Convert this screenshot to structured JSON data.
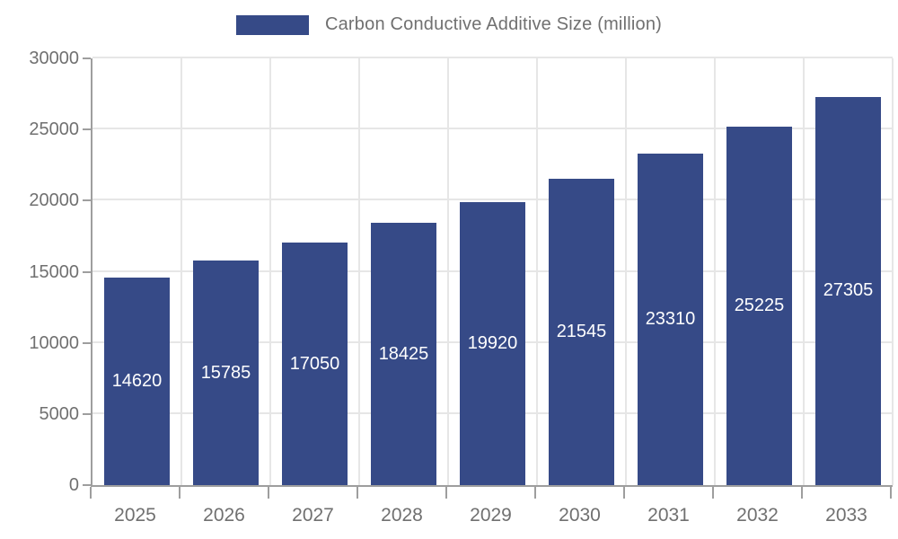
{
  "legend": {
    "label": "Carbon Conductive Additive Size (million)"
  },
  "colors": {
    "bar": "#364a87",
    "grid": "#e6e6e6",
    "axis": "#9e9e9e",
    "tick_text": "#707070",
    "value_text": "#ffffff",
    "background": "#ffffff"
  },
  "chart_data": {
    "type": "bar",
    "title": "Carbon Conductive Additive Size (million)",
    "series": [
      {
        "name": "Carbon Conductive Additive Size (million)",
        "values": [
          14620,
          15785,
          17050,
          18425,
          19920,
          21545,
          23310,
          25225,
          27305
        ]
      }
    ],
    "categories": [
      "2025",
      "2026",
      "2027",
      "2028",
      "2029",
      "2030",
      "2031",
      "2032",
      "2033"
    ],
    "xlabel": "",
    "ylabel": "",
    "ylim": [
      0,
      30000
    ],
    "y_ticks": [
      0,
      5000,
      10000,
      15000,
      20000,
      25000,
      30000
    ],
    "grid": true,
    "legend_position": "top",
    "value_label_position": "inside-center"
  }
}
